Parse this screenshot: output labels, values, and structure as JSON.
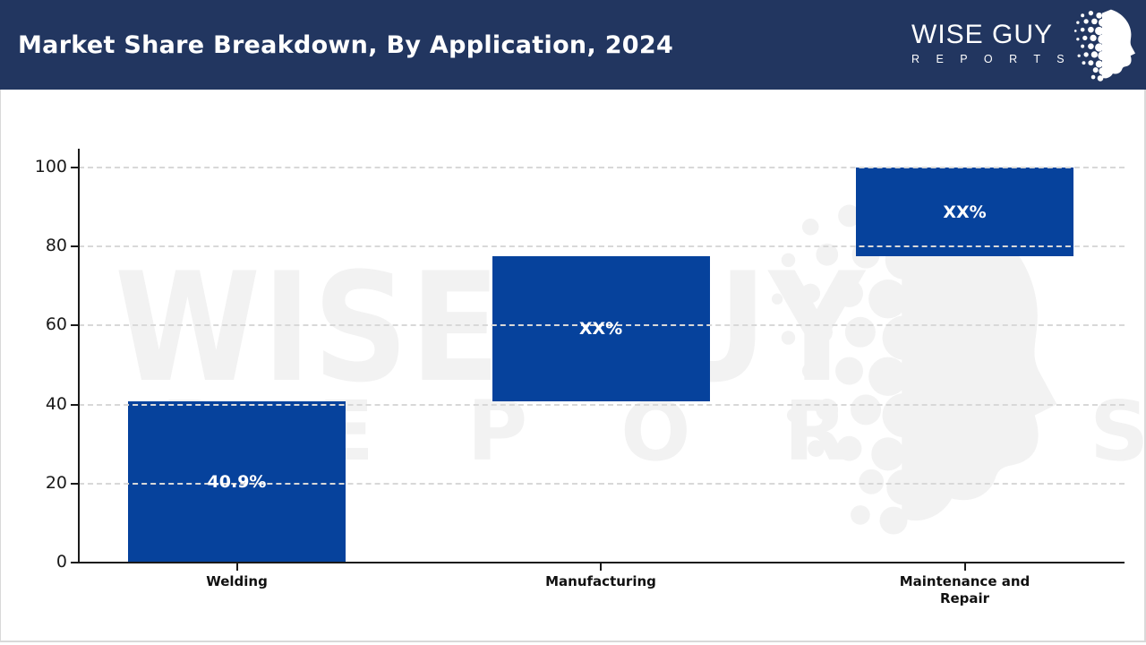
{
  "header": {
    "title": "Market Share Breakdown, By Application, 2024",
    "bg_color": "#223660",
    "logo": {
      "line1": "WISE GUY",
      "line2": "R E P O R T S"
    }
  },
  "watermark": {
    "line1": "WISE GUY",
    "line2": "R E P O R T S"
  },
  "chart_data": {
    "type": "bar",
    "subtype": "waterfall",
    "title": "Market Share Breakdown, By Application, 2024",
    "xlabel": "",
    "ylabel": "",
    "categories": [
      "Welding",
      "Manufacturing",
      "Maintenance and Repair"
    ],
    "segments": [
      {
        "category": "Welding",
        "start": 0,
        "end": 40.9,
        "label": "40.9%"
      },
      {
        "category": "Manufacturing",
        "start": 40.9,
        "end": 77.5,
        "label": "XX%"
      },
      {
        "category": "Maintenance and Repair",
        "start": 77.5,
        "end": 100,
        "label": "XX%"
      }
    ],
    "yticks": [
      0,
      20,
      40,
      60,
      80,
      100
    ],
    "ylim": [
      0,
      100
    ],
    "grid": "horizontal-dashed-over-bars",
    "legend": "none",
    "bar_color": "#06429c",
    "label_color": "#ffffff",
    "axis_color": "#1a1a1a",
    "gridline_color": "#d8d8d8"
  }
}
